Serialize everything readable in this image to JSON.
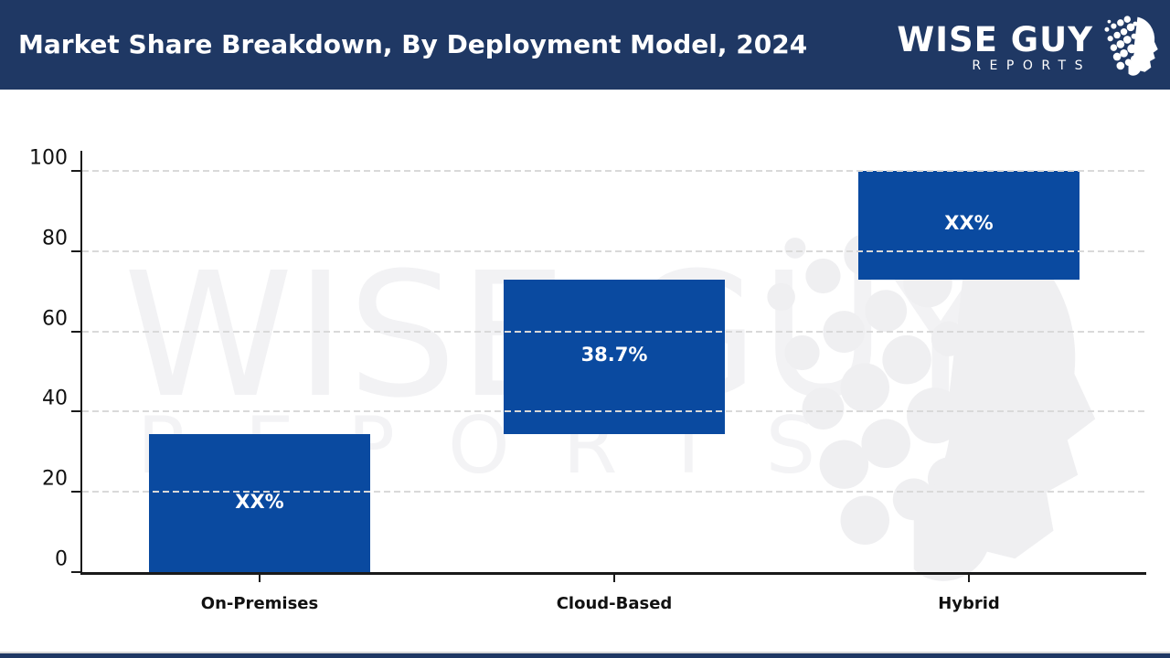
{
  "header": {
    "title": "Market Share Breakdown, By Deployment Model, 2024",
    "logo": {
      "line1": "WISE GUY",
      "line2": "REPORTS"
    }
  },
  "watermark": {
    "line1": "WISE GUY",
    "line2": "REPORTS"
  },
  "chart_data": {
    "type": "bar",
    "subtype": "waterfall",
    "title": "Market Share Breakdown, By Deployment Model, 2024",
    "categories": [
      "On-Premises",
      "Cloud-Based",
      "Hybrid"
    ],
    "segments": [
      {
        "category": "On-Premises",
        "start": 0,
        "end": 34.3,
        "label": "XX%"
      },
      {
        "category": "Cloud-Based",
        "start": 34.3,
        "end": 73.0,
        "label": "38.7%"
      },
      {
        "category": "Hybrid",
        "start": 73.0,
        "end": 100,
        "label": "XX%"
      }
    ],
    "revealed_value_note": "only Cloud-Based value shown: 38.7%; other segments masked as XX%",
    "yticks": [
      0,
      20,
      40,
      60,
      80,
      100
    ],
    "ylim": [
      0,
      105
    ],
    "xlabel": "",
    "ylabel": "",
    "grid": "horizontal dashed",
    "legend": "none",
    "bar_width_fraction": 0.2087
  },
  "colors": {
    "header_navy": "#1F3864",
    "footer_navy": "#1F3864",
    "bar_blue": "#0A4AA0",
    "grid_gray": "#D9D9D9",
    "axis_black": "#1a1a1a",
    "watermark_gray": "#F2F2F4",
    "label_white": "#FFFFFF"
  }
}
